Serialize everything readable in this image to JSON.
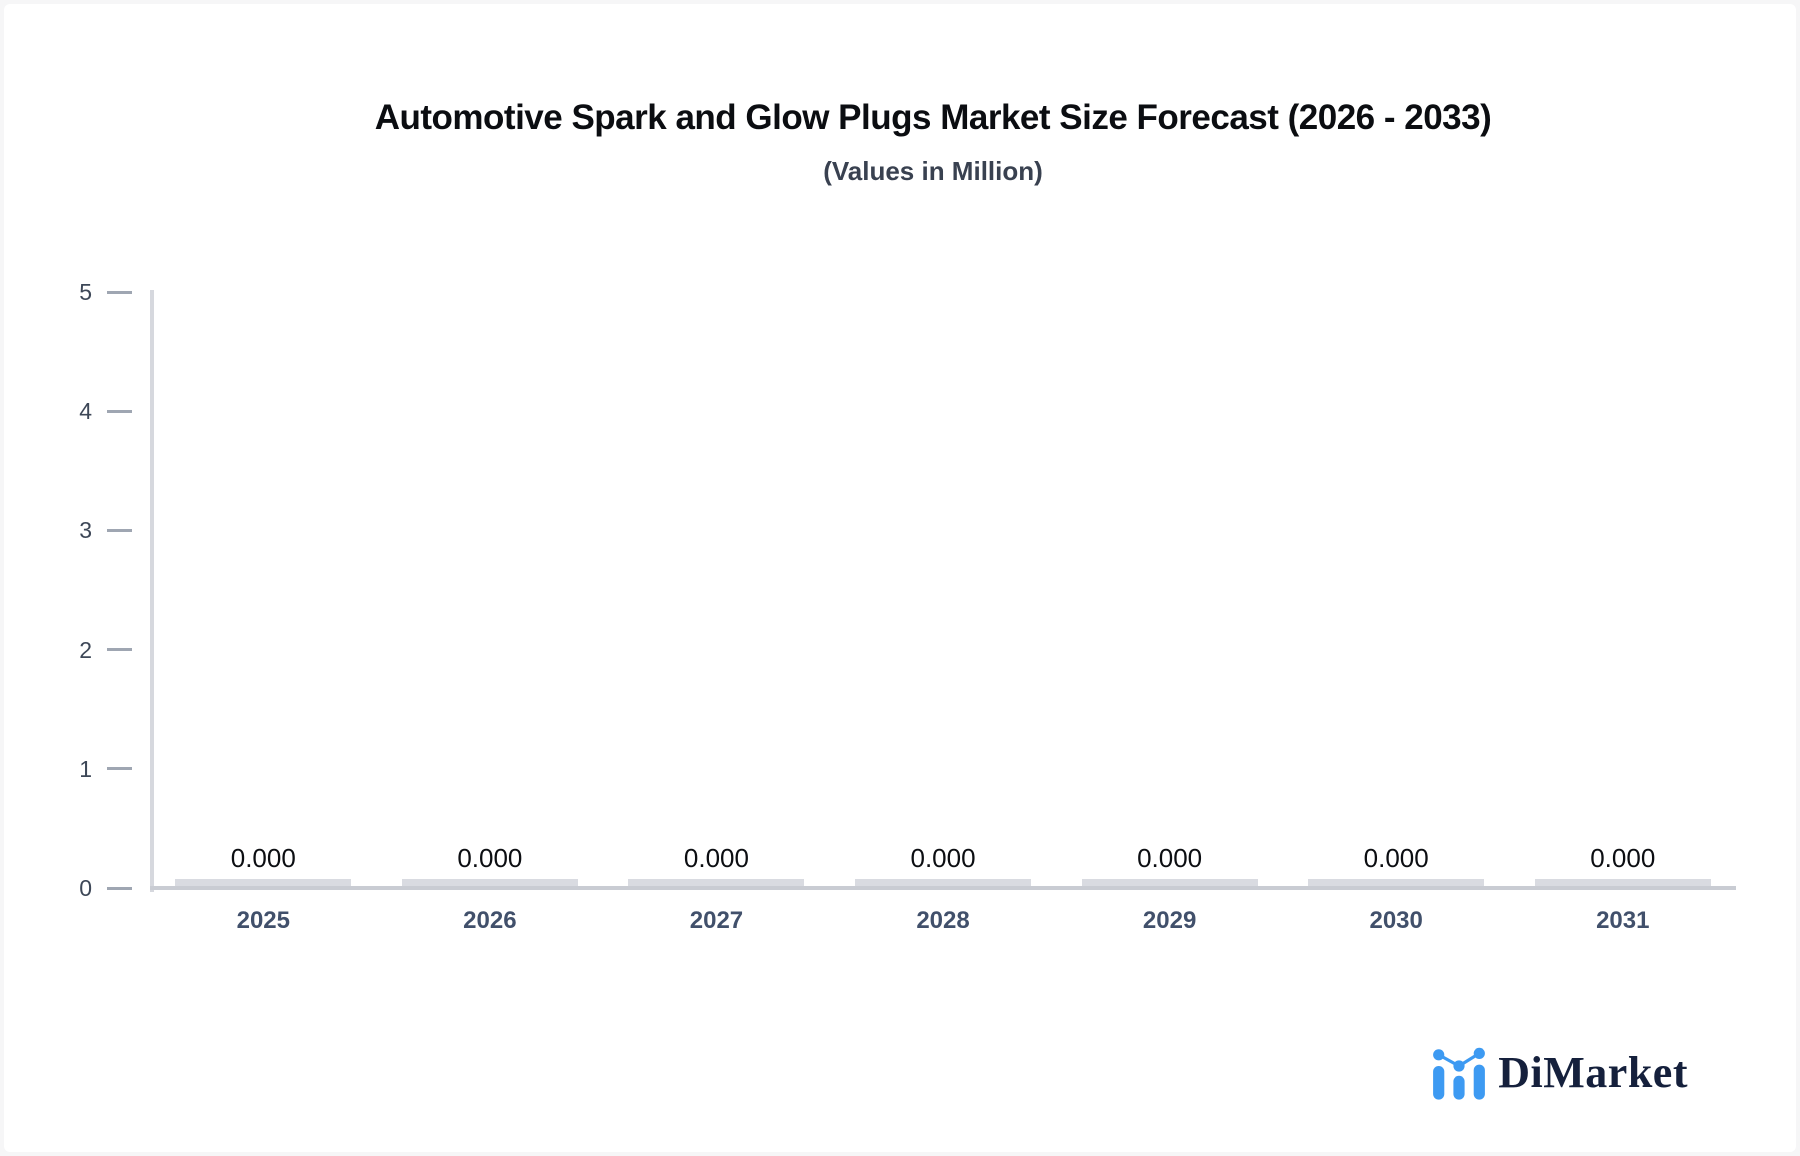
{
  "page": {
    "background": "#f6f6f7",
    "card_background": "#ffffff"
  },
  "chart_data": {
    "type": "bar",
    "title": "Automotive Spark and Glow Plugs Market Size Forecast (2026 - 2033)",
    "subtitle": "(Values in Million)",
    "categories": [
      "2025",
      "2026",
      "2027",
      "2028",
      "2029",
      "2030",
      "2031"
    ],
    "values": [
      0,
      0,
      0,
      0,
      0,
      0,
      0
    ],
    "value_labels": [
      "0.000",
      "0.000",
      "0.000",
      "0.000",
      "0.000",
      "0.000",
      "0.000"
    ],
    "xlabel": "",
    "ylabel": "",
    "ylim": [
      0,
      5
    ],
    "y_ticks": [
      5,
      4,
      3,
      2,
      1,
      0
    ],
    "grid": false,
    "legend": "none",
    "colors": {
      "bar": "#d9dbe1",
      "axis_line": "#d6d8de",
      "baseline": "#c9ccd3",
      "tick": "#9fa6b2",
      "axis_label": "#3d4757",
      "category_label": "#41506b",
      "value_label": "#0c0e12",
      "title": "#0b0d11",
      "subtitle": "#394150"
    }
  },
  "brand": {
    "name": "DiMarket",
    "icon": "bar-chart-logo-icon",
    "icon_color": "#3d9af2",
    "text_color": "#15203c"
  }
}
